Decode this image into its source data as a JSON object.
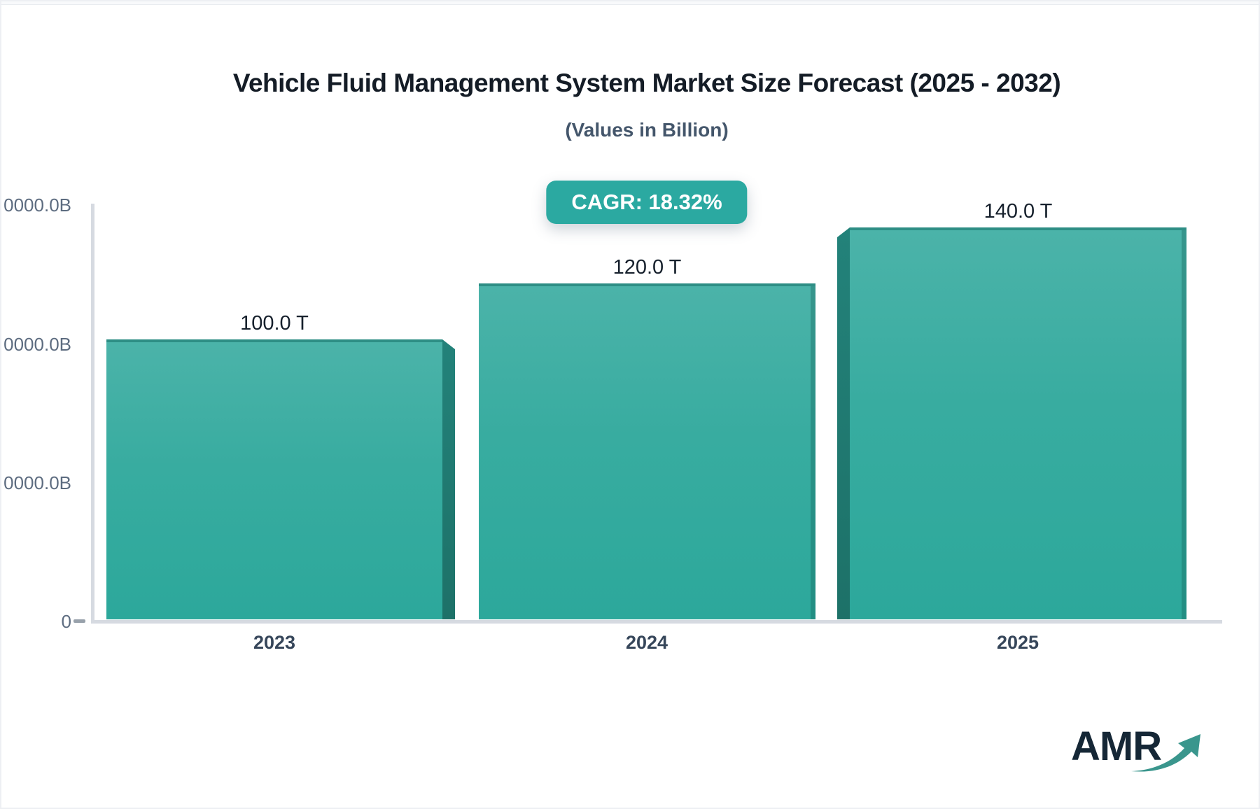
{
  "header": {
    "title": "Vehicle Fluid Management System Market Size Forecast (2025 - 2032)",
    "subtitle": "(Values in Billion)",
    "cagr_label": "CAGR: 18.32%"
  },
  "chart_data": {
    "type": "bar",
    "title": "Vehicle Fluid Management System Market Size Forecast (2025 - 2032)",
    "subtitle": "(Values in Billion)",
    "cagr_pct": 18.32,
    "categories": [
      "2023",
      "2024",
      "2025"
    ],
    "values": [
      100.0,
      120.0,
      140.0
    ],
    "value_labels": [
      "100.0 T",
      "120.0 T",
      "140.0 T"
    ],
    "value_unit": "T",
    "y_axis": {
      "tick_labels_visible": [
        "0000.0B",
        "0000.0B",
        "0000.0B",
        "0"
      ],
      "unit": "B",
      "ylim_T": [
        0,
        150
      ],
      "grid": false
    },
    "legend": "none",
    "bar_color": "#2fa79b"
  },
  "branding": {
    "logo_text": "AMR"
  },
  "colors": {
    "bar_gradient_top": "#4bb3a9",
    "bar_gradient_bottom": "#2ca89b",
    "bar_side_dark": "#1f7a71",
    "bar_top_edge": "#2e8e85",
    "badge_bg": "#2ba9a1",
    "axis_line": "#d6dae1",
    "title_text": "#141c26",
    "subtitle_text": "#44566b",
    "tick_text": "#5d6c80",
    "logo_text": "#152736",
    "logo_arrow": "#3a968d"
  }
}
